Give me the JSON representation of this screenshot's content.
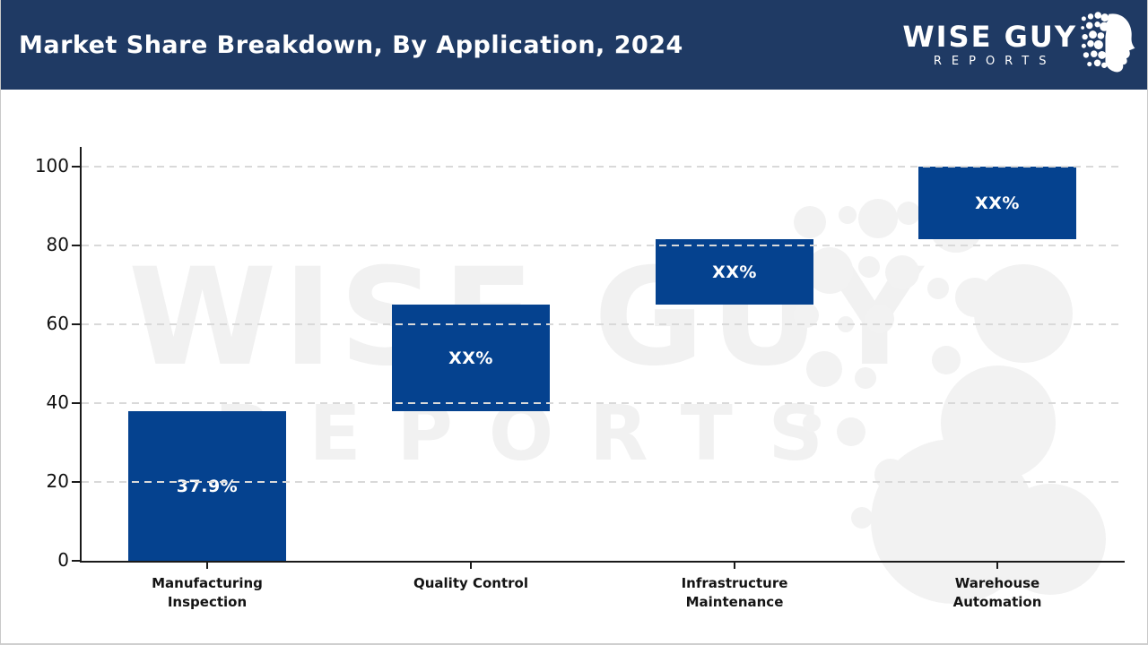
{
  "header": {
    "title": "Market Share Breakdown, By Application, 2024",
    "bg_color": "#1f3a64",
    "logo": {
      "main": "WISE GUY",
      "sub": "REPORTS"
    }
  },
  "watermark": {
    "line1": "WISE GUY",
    "line2": "REPORTS"
  },
  "chart_data": {
    "type": "bar",
    "subtype": "waterfall-floating-bars",
    "title": "Market Share Breakdown, By Application, 2024",
    "categories": [
      "Manufacturing Inspection",
      "Quality Control",
      "Infrastructure Maintenance",
      "Warehouse Automation"
    ],
    "category_label_lines": [
      [
        "Manufacturing",
        "Inspection"
      ],
      [
        "Quality Control"
      ],
      [
        "Infrastructure",
        "Maintenance"
      ],
      [
        "Warehouse",
        "Automation"
      ]
    ],
    "bars": [
      {
        "category": "Manufacturing Inspection",
        "label": "37.9%",
        "start": 0,
        "end": 37.9
      },
      {
        "category": "Quality Control",
        "label": "XX%",
        "start": 37.9,
        "end": 65
      },
      {
        "category": "Infrastructure Maintenance",
        "label": "XX%",
        "start": 65,
        "end": 81.5
      },
      {
        "category": "Warehouse Automation",
        "label": "XX%",
        "start": 81.5,
        "end": 100
      }
    ],
    "ylim": [
      0,
      100
    ],
    "yticks": [
      "0",
      "20",
      "40",
      "60",
      "80",
      "100"
    ],
    "grid": "horizontal-dashed",
    "legend": "none",
    "bar_color": "#05428f",
    "bar_label_color": "#ffffff",
    "axis_color": "#1a1a1a",
    "gridline_color": "#d9d9d9"
  }
}
